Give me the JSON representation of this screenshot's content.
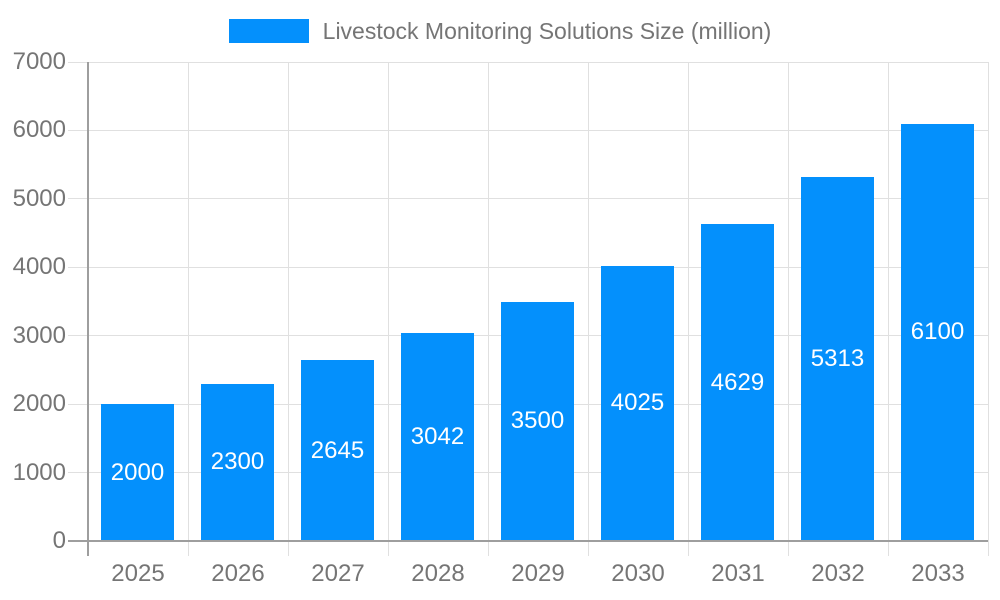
{
  "legend": {
    "label": "Livestock Monitoring Solutions Size (million)"
  },
  "colors": {
    "bar": "#0490fc",
    "grid": "#e0e0e0",
    "axis": "#9e9e9e",
    "text": "#757575",
    "bar_label": "#ffffff",
    "background": "#ffffff"
  },
  "chart_data": {
    "type": "bar",
    "title": "Livestock Monitoring Solutions Size (million)",
    "categories": [
      "2025",
      "2026",
      "2027",
      "2028",
      "2029",
      "2030",
      "2031",
      "2032",
      "2033"
    ],
    "values": [
      2000,
      2300,
      2645,
      3042,
      3500,
      4025,
      4629,
      5313,
      6100
    ],
    "xlabel": "",
    "ylabel": "",
    "ylim": [
      0,
      7000
    ],
    "ytick_step": 1000,
    "ytick_labels": [
      "0",
      "1000",
      "2000",
      "3000",
      "4000",
      "5000",
      "6000",
      "7000"
    ],
    "grid": true,
    "legend_position": "top",
    "value_labels": "inside-center"
  }
}
